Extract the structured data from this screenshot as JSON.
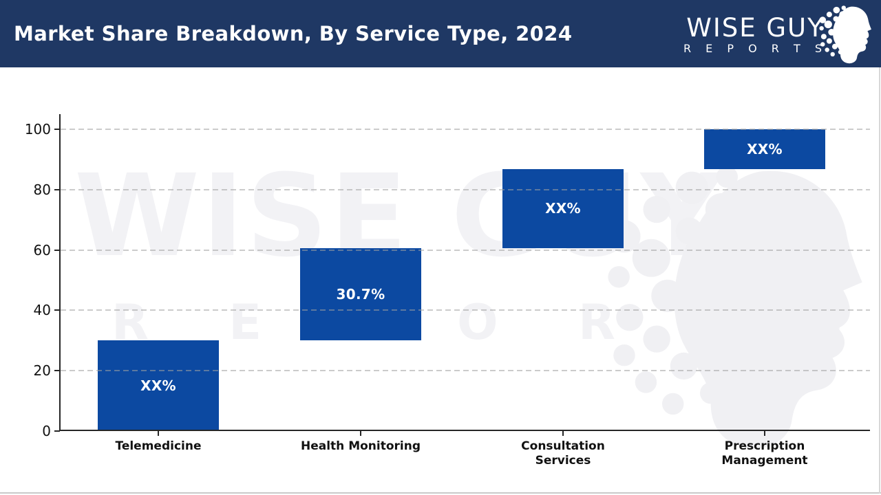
{
  "header": {
    "title": "Market Share Breakdown, By Service Type, 2024",
    "logo": {
      "line1": "WISE GUY",
      "line2": "R E P O R T S"
    }
  },
  "watermark": {
    "line1": "WISE GUY",
    "line2": "R E P O R T S"
  },
  "colors": {
    "header_bg": "#1f3864",
    "bar": "#0c49a1",
    "grid": "#d9d9d9",
    "axis": "#262626",
    "bar_label": "#ffffff",
    "watermark": "#f2f2f5"
  },
  "chart_data": {
    "type": "bar",
    "subtype": "waterfall",
    "title": "Market Share Breakdown, By Service Type, 2024",
    "categories": [
      "Telemedicine",
      "Health Monitoring",
      "Consultation Services",
      "Prescription Management"
    ],
    "series": [
      {
        "name": "Telemedicine",
        "start": 0,
        "end": 30,
        "label": "XX%"
      },
      {
        "name": "Health Monitoring",
        "start": 30,
        "end": 60.7,
        "label": "30.7%"
      },
      {
        "name": "Consultation Services",
        "start": 60.7,
        "end": 86.9,
        "label": "XX%"
      },
      {
        "name": "Prescription Management",
        "start": 86.9,
        "end": 100,
        "label": "XX%"
      }
    ],
    "ylim": [
      0,
      100
    ],
    "yticks": [
      0,
      20,
      40,
      60,
      80,
      100
    ],
    "xlabel": "",
    "ylabel": "",
    "grid": "horizontal-dashed",
    "legend": "none",
    "bar_color": "#0c49a1",
    "label_color": "#ffffff"
  }
}
